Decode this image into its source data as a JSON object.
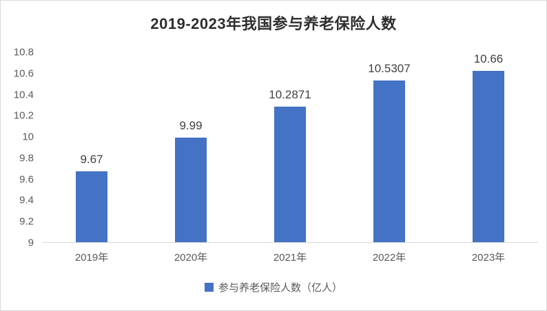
{
  "window": {
    "background": "#ffffff",
    "border_color": "#d9d9d9"
  },
  "chart_data": {
    "type": "bar",
    "title": "2019-2023年我国参与养老保险人数",
    "categories": [
      "2019年",
      "2020年",
      "2021年",
      "2022年",
      "2023年"
    ],
    "values": [
      9.67,
      9.99,
      10.2871,
      10.5307,
      10.66
    ],
    "value_labels": [
      "9.67",
      "9.99",
      "10.2871",
      "10.5307",
      "10.66"
    ],
    "series_name": "参与养老保险人数（亿人）",
    "legend_position": "bottom",
    "legend_marker": "square",
    "xlabel": "",
    "ylabel": "",
    "ylim": [
      9,
      10.8
    ],
    "ytick_step": 0.2,
    "yticks": [
      "10.8",
      "10.6",
      "10.4",
      "10.2",
      "10",
      "9.8",
      "9.6",
      "9.4",
      "9.2",
      "9"
    ],
    "grid": false,
    "colors": {
      "bar": "#4472c4",
      "title_text": "#2e2e2e",
      "axis_text": "#595959",
      "data_label_text": "#404040",
      "axis_line": "#d9d9d9"
    }
  }
}
